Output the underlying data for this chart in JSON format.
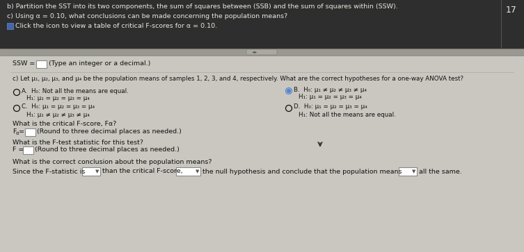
{
  "bg_color": "#b8b5ae",
  "header_bg": "#3a3a3a",
  "body_bg": "#c8c5be",
  "page_number": "17",
  "header_line1": "b) Partition the SST into its two components, the sum of squares between (SSB) and the sum of squares within (SSW).",
  "header_line2": "c) Using α = 0.10, what conclusions can be made concerning the population means?",
  "icon_line": "Click the icon to view a table of critical F-scores for α = 0.10.",
  "part_c_line": "c) Let μ₁, μ₂, μ₃, and μ₄ be the population means of samples 1, 2, 3, and 4, respectively. What are the correct hypotheses for a one-way ANOVA test?",
  "optA_line1": "H₀: Not all the means are equal.",
  "optA_line2": "H₁: μ₁ = μ₂ = μ₃ = μ₄",
  "optB_line1": "H₀: μ₁ ≠ μ₂ ≠ μ₃ ≠ μ₄",
  "optB_line2": "H₁: μ₁ = μ₂ = μ₃ = μ₄",
  "optC_line1": "H₀: μ₁ = μ₂ = μ₃ = μ₄",
  "optC_line2": "H₁: μ₁ ≠ μ₂ ≠ μ₃ ≠ μ₄",
  "optD_line1": "H₀: μ₁ = μ₂ = μ₃ = μ₄",
  "optD_line2": "H₁: Not all the means are equal.",
  "crit_f_q": "What is the critical F-score, Fα?",
  "ftest_q": "What is the F-test statistic for this test?",
  "conclusion_q": "What is the correct conclusion about the population means?",
  "text_color": "#111111",
  "light_text": "#cccccc",
  "divider_color": "#888888",
  "box_color": "#ffffff",
  "header_text": "#e8e8e0"
}
